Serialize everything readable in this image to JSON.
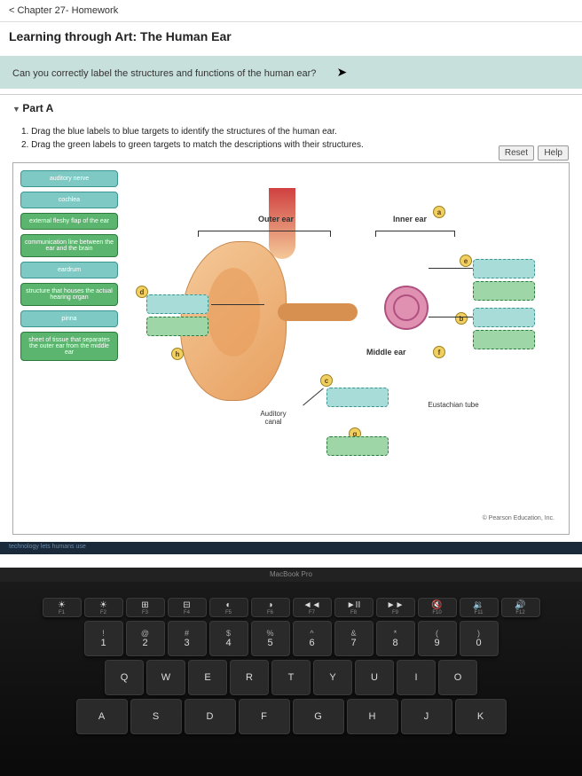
{
  "breadcrumb": "< Chapter 27- Homework",
  "page_title": "Learning through Art: The Human Ear",
  "question": "Can you correctly label the structures and functions of the human ear?",
  "part_label": "Part A",
  "instruction1": "1. Drag the blue labels to blue targets to identify the structures of the human ear.",
  "instruction2": "2. Drag the green labels to green targets to match the descriptions with their structures.",
  "buttons": {
    "reset": "Reset",
    "help": "Help"
  },
  "labels": {
    "blue": [
      "auditory nerve",
      "cochlea",
      "eardrum",
      "pinna"
    ],
    "green": [
      "external fleshy flap of the ear",
      "communication line between the ear and the brain",
      "structure that houses the actual hearing organ",
      "sheet of tissue that separates the outer ear from the middle ear"
    ]
  },
  "regions": {
    "outer": "Outer ear",
    "inner": "Inner ear",
    "middle": "Middle ear"
  },
  "static_labels": {
    "auditory_canal": "Auditory canal",
    "eustachian": "Eustachian tube"
  },
  "markers": [
    "a",
    "b",
    "c",
    "d",
    "e",
    "f",
    "g",
    "h"
  ],
  "copyright": "© Pearson Education, Inc.",
  "footer_text": "technology lets humans use",
  "bezel_text": "MacBook Pro",
  "colors": {
    "blue_label": "#7fc9c4",
    "green_label": "#5bb56e",
    "question_bg": "#c8e0dc"
  },
  "keyboard": {
    "fn_row": [
      {
        "icon": "☀",
        "sub": "F1"
      },
      {
        "icon": "☀",
        "sub": "F2"
      },
      {
        "icon": "⊞",
        "sub": "F3"
      },
      {
        "icon": "⊟",
        "sub": "F4"
      },
      {
        "icon": "◐",
        "sub": "F5"
      },
      {
        "icon": "◑",
        "sub": "F6"
      },
      {
        "icon": "◄◄",
        "sub": "F7"
      },
      {
        "icon": "►II",
        "sub": "F8"
      },
      {
        "icon": "►►",
        "sub": "F9"
      },
      {
        "icon": "🔇",
        "sub": "F10"
      },
      {
        "icon": "🔉",
        "sub": "F11"
      },
      {
        "icon": "🔊",
        "sub": "F12"
      }
    ],
    "num_row": [
      {
        "sym": "!",
        "main": "1"
      },
      {
        "sym": "@",
        "main": "2"
      },
      {
        "sym": "#",
        "main": "3"
      },
      {
        "sym": "$",
        "main": "4"
      },
      {
        "sym": "%",
        "main": "5"
      },
      {
        "sym": "^",
        "main": "6"
      },
      {
        "sym": "&",
        "main": "7"
      },
      {
        "sym": "*",
        "main": "8"
      },
      {
        "sym": "(",
        "main": "9"
      },
      {
        "sym": ")",
        "main": "0"
      }
    ],
    "row_q": [
      "Q",
      "W",
      "E",
      "R",
      "T",
      "Y",
      "U",
      "I",
      "O"
    ],
    "row_a": [
      "A",
      "S",
      "D",
      "F",
      "G",
      "H",
      "J",
      "K"
    ]
  }
}
